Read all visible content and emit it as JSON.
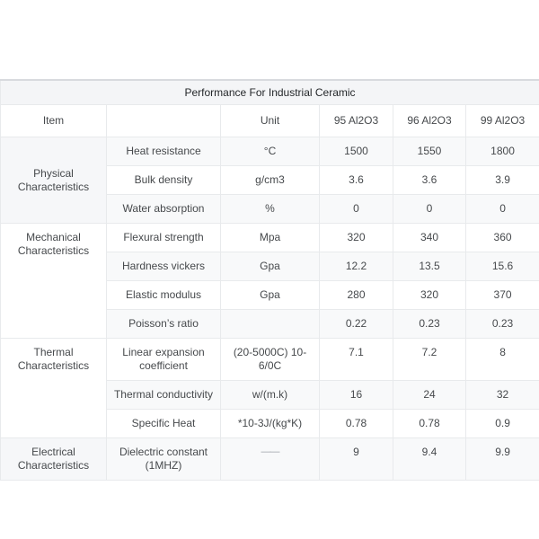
{
  "table": {
    "title": "Performance For Industrial Ceramic",
    "columns": [
      "Item",
      "",
      "Unit",
      "95 Al2O3",
      "96 Al2O3",
      "99 Al2O3"
    ],
    "groups": [
      {
        "name": "Physical Characteristics",
        "rows": [
          {
            "property": "Heat resistance",
            "unit": "°C",
            "values": [
              "1500",
              "1550",
              "1800"
            ]
          },
          {
            "property": "Bulk density",
            "unit": "g/cm3",
            "values": [
              "3.6",
              "3.6",
              "3.9"
            ]
          },
          {
            "property": "Water absorption",
            "unit": "%",
            "values": [
              "0",
              "0",
              "0"
            ]
          }
        ]
      },
      {
        "name": "Mechanical Characteristics",
        "rows": [
          {
            "property": "Flexural strength",
            "unit": "Mpa",
            "values": [
              "320",
              "340",
              "360"
            ]
          },
          {
            "property": "Hardness vickers",
            "unit": "Gpa",
            "values": [
              "12.2",
              "13.5",
              "15.6"
            ]
          },
          {
            "property": "Elastic modulus",
            "unit": "Gpa",
            "values": [
              "280",
              "320",
              "370"
            ]
          },
          {
            "property": "Poisson’s ratio",
            "unit": "",
            "values": [
              "0.22",
              "0.23",
              "0.23"
            ]
          }
        ]
      },
      {
        "name": "Thermal Characteristics",
        "rows": [
          {
            "property": "Linear expansion coefficient",
            "unit": "(20-5000C) 10-6/0C",
            "values": [
              "7.1",
              "7.2",
              "8"
            ]
          },
          {
            "property": "Thermal conductivity",
            "unit": "w/(m.k)",
            "values": [
              "16",
              "24",
              "32"
            ]
          },
          {
            "property": "Specific Heat",
            "unit": "*10-3J/(kg*K)",
            "values": [
              "0.78",
              "0.78",
              "0.9"
            ]
          }
        ]
      },
      {
        "name": "Electrical Characteristics",
        "rows": [
          {
            "property": "Dielectric constant (1MHZ)",
            "unit": "——",
            "unit_muted": true,
            "values": [
              "9",
              "9.4",
              "9.9"
            ]
          }
        ]
      }
    ]
  },
  "colors": {
    "top_border": "#d8dade",
    "cell_border": "#e8eaec",
    "title_bg": "#f4f5f7",
    "stripe_bg": "#f8f9fa",
    "group_column_bg": "#f6f7f9",
    "text": "#46494c",
    "title_text": "#24272a",
    "muted_dash": "#9ba0a6"
  }
}
